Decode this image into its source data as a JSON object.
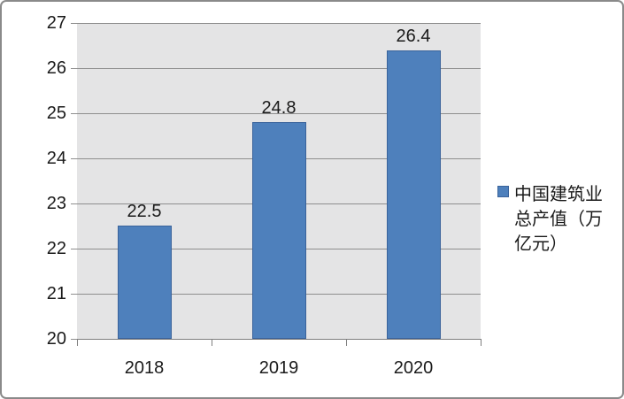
{
  "chart_data": {
    "type": "bar",
    "categories": [
      "2018",
      "2019",
      "2020"
    ],
    "series": [
      {
        "name": "中国建筑业总产值（万亿元）",
        "values": [
          22.5,
          24.8,
          26.4
        ]
      }
    ],
    "data_labels": [
      "22.5",
      "24.8",
      "26.4"
    ],
    "title": "",
    "xlabel": "",
    "ylabel": "",
    "ylim": [
      20,
      27
    ],
    "ytick_interval": 1,
    "yticks": [
      "27",
      "26",
      "25",
      "24",
      "23",
      "22",
      "21",
      "20"
    ],
    "grid": true,
    "legend_position": "right",
    "legend_lines": [
      "中国建筑业",
      "总产值（万",
      "亿元）"
    ]
  },
  "colors": {
    "bar_fill": "#4e80bc",
    "bar_border": "#3a639b",
    "plot_background": "#e4e4e5",
    "gridline": "#8e8e8e",
    "axis": "#7f7f7f",
    "frame_border": "#8a8a8a",
    "text": "#1a1a1a"
  }
}
